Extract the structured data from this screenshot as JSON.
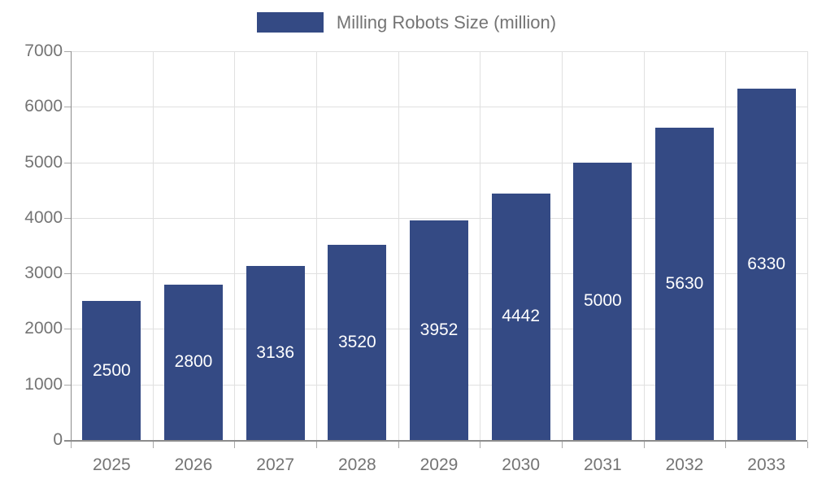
{
  "legend": {
    "label": "Milling Robots Size (million)"
  },
  "chart_data": {
    "type": "bar",
    "title": "Milling Robots Size (million)",
    "categories": [
      "2025",
      "2026",
      "2027",
      "2028",
      "2029",
      "2030",
      "2031",
      "2032",
      "2033"
    ],
    "values": [
      2500,
      2800,
      3136,
      3520,
      3952,
      4442,
      5000,
      5630,
      6330
    ],
    "xlabel": "",
    "ylabel": "",
    "ylim": [
      0,
      7000
    ],
    "yticks": [
      0,
      1000,
      2000,
      3000,
      4000,
      5000,
      6000,
      7000
    ],
    "grid": true,
    "legend_position": "top",
    "value_labels": "inside-center",
    "colors": {
      "bar": "#344a84",
      "bar_label_text": "#ffffff",
      "axis_text": "#747474",
      "gridline": "#e0e0e0",
      "axis_line": "#8c8c8c"
    }
  }
}
